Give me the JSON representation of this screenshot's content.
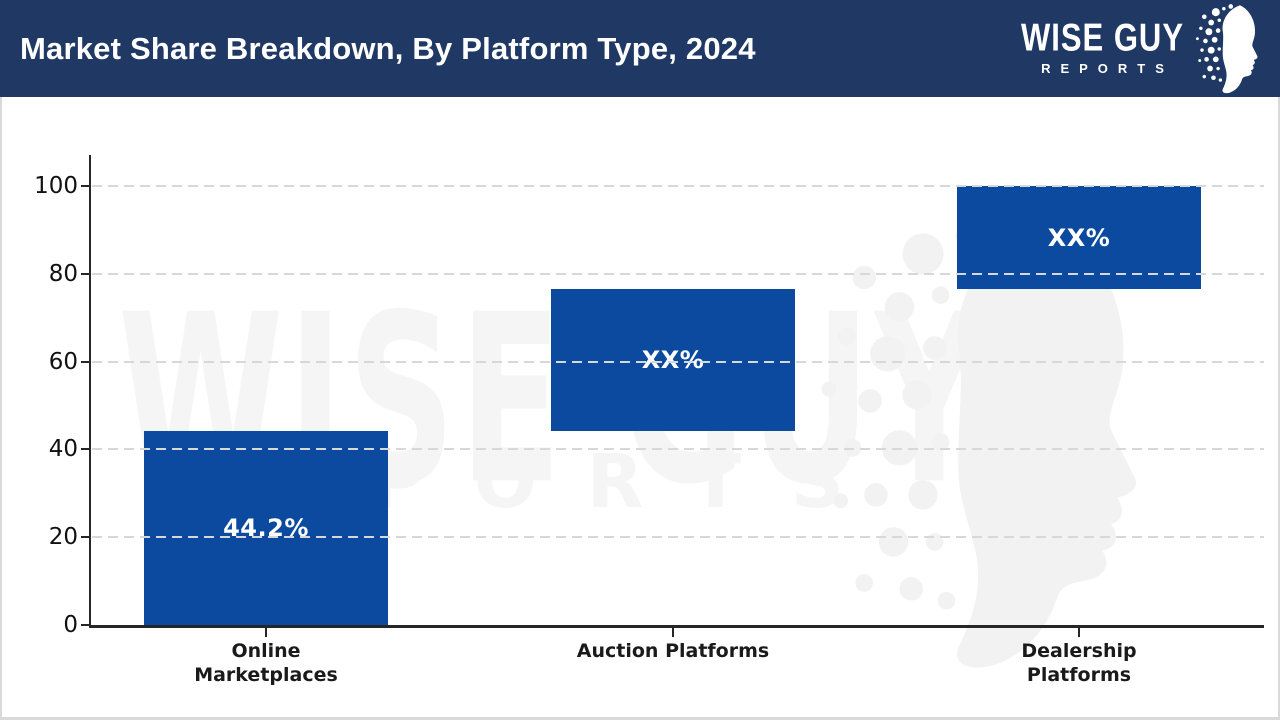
{
  "header": {
    "title": "Market Share Breakdown, By Platform Type, 2024"
  },
  "logo": {
    "line1": "WISE GUY",
    "line2": "REPORTS",
    "icon": "dotted-face-profile"
  },
  "watermark": {
    "line1": "WISE GUY",
    "line2": "REPORTS",
    "icon": "dotted-face-profile"
  },
  "colors": {
    "header_bg": "#1F3864",
    "bar_fill": "#0C4AA0",
    "bar_value_text": "#ffffff",
    "axis": "#262626",
    "gridline": "#d8d8d8",
    "watermark": "#f5f5f5",
    "page_border": "#d9d9d9",
    "tick_text": "#111111"
  },
  "chart_data": {
    "type": "bar",
    "subtype": "waterfall",
    "title": "Market Share Breakdown, By Platform Type, 2024",
    "categories": [
      "Online Marketplaces",
      "Auction Platforms",
      "Dealership Platforms"
    ],
    "bars": [
      {
        "category": "Online Marketplaces",
        "start": 0,
        "end": 44.2,
        "label": "44.2%"
      },
      {
        "category": "Auction Platforms",
        "start": 44.2,
        "end": 76.5,
        "label": "XX%"
      },
      {
        "category": "Dealership Platforms",
        "start": 76.5,
        "end": 100,
        "label": "XX%"
      }
    ],
    "xlabel": "",
    "ylabel": "",
    "ylim": [
      0,
      107
    ],
    "yticks": [
      0,
      20,
      40,
      60,
      80,
      100
    ],
    "grid": "horizontal-dashed, drawn over bars",
    "legend": "none",
    "bar_color": "#0C4AA0"
  }
}
